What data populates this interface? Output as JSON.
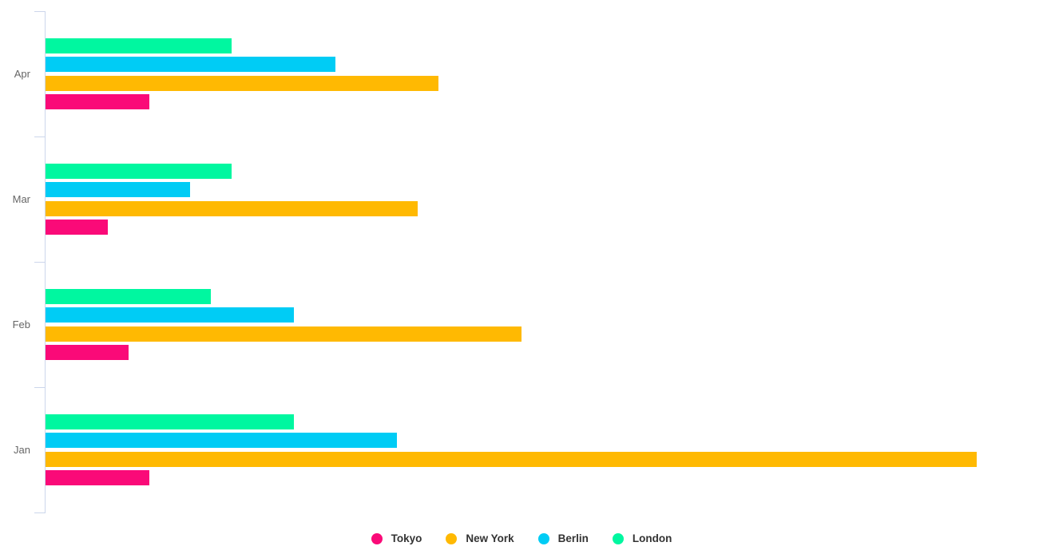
{
  "chart_data": {
    "type": "bar",
    "orientation": "horizontal",
    "title": "",
    "categories": [
      "Jan",
      "Feb",
      "Mar",
      "Apr"
    ],
    "categories_display_top_to_bottom": [
      "Apr",
      "Mar",
      "Feb",
      "Jan"
    ],
    "series": [
      {
        "name": "Tokyo",
        "color": "#FA0A78",
        "values": [
          5,
          4,
          3,
          5
        ]
      },
      {
        "name": "New York",
        "color": "#FFB902",
        "values": [
          45,
          23,
          18,
          19
        ]
      },
      {
        "name": "Berlin",
        "color": "#00CCF5",
        "values": [
          17,
          12,
          7,
          14
        ]
      },
      {
        "name": "London",
        "color": "#00F7A0",
        "values": [
          12,
          8,
          9,
          9
        ]
      }
    ],
    "bar_order_top_to_bottom_in_group": [
      "London",
      "Berlin",
      "New York",
      "Tokyo"
    ],
    "value_axis": {
      "min": 0,
      "max": 48,
      "labels_visible": false,
      "gridlines_visible": false
    },
    "category_axis": {
      "line_color": "#CCD6EB",
      "tick_color": "#CCD6EB",
      "label_color": "#666666"
    },
    "legend": {
      "position": "bottom",
      "marker_shape": "circle",
      "text_color": "#333333"
    }
  }
}
